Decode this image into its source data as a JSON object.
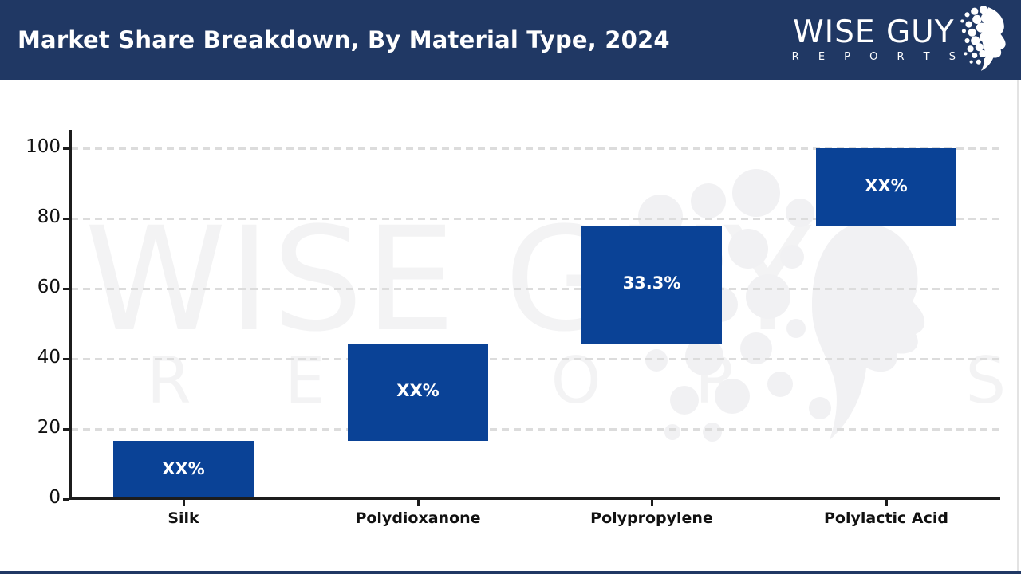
{
  "header": {
    "title": "Market Share Breakdown, By Material Type, 2024",
    "logo": {
      "name": "WISE GUY",
      "tagline": "R E P O R T S"
    }
  },
  "watermark": {
    "line1": "WISE GUY",
    "line2": "R E P O R T S"
  },
  "chart_data": {
    "type": "bar",
    "subtype": "waterfall",
    "title": "Market Share Breakdown, By Material Type, 2024",
    "categories": [
      "Silk",
      "Polydioxanone",
      "Polypropylene",
      "Polylactic Acid"
    ],
    "segments": [
      {
        "category": "Silk",
        "start": 0,
        "end": 16.5,
        "label": "XX%"
      },
      {
        "category": "Polydioxanone",
        "start": 16.5,
        "end": 44.4,
        "label": "XX%"
      },
      {
        "category": "Polypropylene",
        "start": 44.4,
        "end": 77.7,
        "label": "33.3%"
      },
      {
        "category": "Polylactic Acid",
        "start": 77.7,
        "end": 100,
        "label": "XX%"
      }
    ],
    "yticks": [
      0,
      20,
      40,
      60,
      80,
      100
    ],
    "ylim": [
      0,
      105
    ],
    "xlabel": "",
    "ylabel": "",
    "grid": "horizontal-dashed",
    "legend": "none",
    "colors": {
      "bar": "#0a4296",
      "bar_label": "#ffffff",
      "header_bg": "#203864",
      "footer_bg": "#203864",
      "gridline": "#dcdcdc",
      "axis": "#1c1c1c",
      "watermark": "#f3f3f4"
    }
  }
}
